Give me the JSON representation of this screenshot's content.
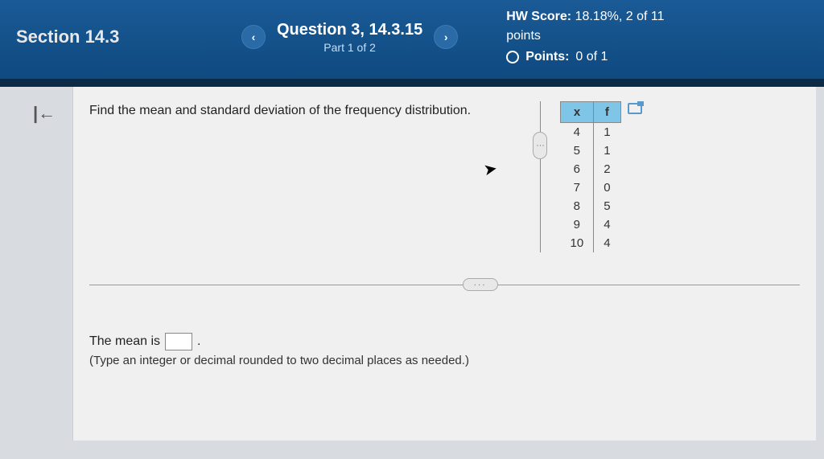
{
  "header": {
    "section": "Section 14.3",
    "question_title": "Question 3, 14.3.15",
    "question_part": "Part 1 of 2",
    "hw_score_label": "HW Score:",
    "hw_score_value": "18.18%, 2 of 11",
    "points_label_2": "points",
    "points_label": "Points:",
    "points_value": "0 of 1",
    "prev_glyph": "‹",
    "next_glyph": "›"
  },
  "question": {
    "prompt": "Find the mean and standard deviation of the frequency distribution.",
    "back_glyph": "|←",
    "expand_glyph": "⋮"
  },
  "table": {
    "headers": [
      "x",
      "f"
    ],
    "rows": [
      [
        "4",
        "1"
      ],
      [
        "5",
        "1"
      ],
      [
        "6",
        "2"
      ],
      [
        "7",
        "0"
      ],
      [
        "8",
        "5"
      ],
      [
        "9",
        "4"
      ],
      [
        "10",
        "4"
      ]
    ],
    "header_bg": "#7fc5e8",
    "border_color": "#888888"
  },
  "answer": {
    "prefix": "The mean is",
    "suffix": ".",
    "value": "",
    "hint": "(Type an integer or decimal rounded to two decimal places as needed.)"
  },
  "divider_glyph": "···",
  "colors": {
    "header_bg_top": "#1a5a96",
    "header_bg_bottom": "#0f4a80",
    "content_bg": "#f0f0f0",
    "page_bg": "#d8dce0"
  }
}
